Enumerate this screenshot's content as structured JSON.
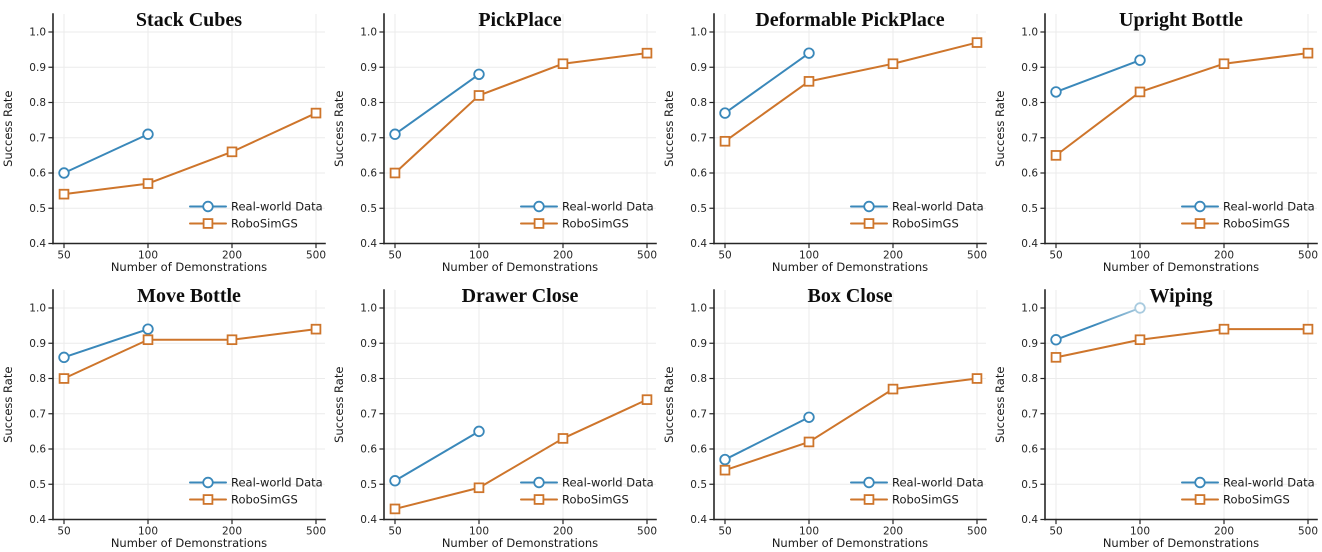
{
  "figure": {
    "xlabel": "Number of Demonstrations",
    "ylabel": "Success Rate",
    "x_tick_labels": [
      "50",
      "100",
      "200",
      "500"
    ],
    "y_tick_labels": [
      "0.4",
      "0.5",
      "0.6",
      "0.7",
      "0.8",
      "0.9",
      "1.0"
    ],
    "legend_entries": [
      "Real-world Data",
      "RoboSimGS"
    ],
    "colors": {
      "real_world_blue": "#3a88ba",
      "robosimgs_orange": "#ce752b",
      "faded_light_blue": "#a9cbdf",
      "grid_line": "#ebebeb",
      "axis_line": "#262626",
      "marker_fill": "#ffffff"
    }
  },
  "chart_data": [
    {
      "type": "line",
      "title": "Stack Cubes",
      "xlabel": "Number of Demonstrations",
      "ylabel": "Success Rate",
      "x_ticks": [
        50,
        100,
        200,
        500
      ],
      "y_ticks": [
        0.4,
        0.5,
        0.6,
        0.7,
        0.8,
        0.9,
        1.0
      ],
      "ylim": [
        0.4,
        1.05
      ],
      "grid": true,
      "legend_position": "lower right",
      "series": [
        {
          "name": "Real-world Data",
          "marker": "circle",
          "color": "#3a88ba",
          "x": [
            50,
            100
          ],
          "y": [
            0.6,
            0.71
          ]
        },
        {
          "name": "RoboSimGS",
          "marker": "square",
          "color": "#ce752b",
          "x": [
            50,
            100,
            200,
            500
          ],
          "y": [
            0.54,
            0.57,
            0.66,
            0.77
          ]
        }
      ]
    },
    {
      "type": "line",
      "title": "PickPlace",
      "xlabel": "Number of Demonstrations",
      "ylabel": "Success Rate",
      "x_ticks": [
        50,
        100,
        200,
        500
      ],
      "y_ticks": [
        0.4,
        0.5,
        0.6,
        0.7,
        0.8,
        0.9,
        1.0
      ],
      "ylim": [
        0.4,
        1.05
      ],
      "grid": true,
      "legend_position": "lower right",
      "series": [
        {
          "name": "Real-world Data",
          "marker": "circle",
          "color": "#3a88ba",
          "x": [
            50,
            100
          ],
          "y": [
            0.71,
            0.88
          ]
        },
        {
          "name": "RoboSimGS",
          "marker": "square",
          "color": "#ce752b",
          "x": [
            50,
            100,
            200,
            500
          ],
          "y": [
            0.6,
            0.82,
            0.91,
            0.94
          ]
        }
      ]
    },
    {
      "type": "line",
      "title": "Deformable PickPlace",
      "xlabel": "Number of Demonstrations",
      "ylabel": "Success Rate",
      "x_ticks": [
        50,
        100,
        200,
        500
      ],
      "y_ticks": [
        0.4,
        0.5,
        0.6,
        0.7,
        0.8,
        0.9,
        1.0
      ],
      "ylim": [
        0.4,
        1.05
      ],
      "grid": true,
      "legend_position": "lower right",
      "series": [
        {
          "name": "Real-world Data",
          "marker": "circle",
          "color": "#3a88ba",
          "x": [
            50,
            100
          ],
          "y": [
            0.77,
            0.94
          ]
        },
        {
          "name": "RoboSimGS",
          "marker": "square",
          "color": "#ce752b",
          "x": [
            50,
            100,
            200,
            500
          ],
          "y": [
            0.69,
            0.86,
            0.91,
            0.97
          ]
        }
      ]
    },
    {
      "type": "line",
      "title": "Upright Bottle",
      "xlabel": "Number of Demonstrations",
      "ylabel": "Success Rate",
      "x_ticks": [
        50,
        100,
        200,
        500
      ],
      "y_ticks": [
        0.4,
        0.5,
        0.6,
        0.7,
        0.8,
        0.9,
        1.0
      ],
      "ylim": [
        0.4,
        1.05
      ],
      "grid": true,
      "legend_position": "lower right",
      "series": [
        {
          "name": "Real-world Data",
          "marker": "circle",
          "color": "#3a88ba",
          "x": [
            50,
            100
          ],
          "y": [
            0.83,
            0.92
          ]
        },
        {
          "name": "RoboSimGS",
          "marker": "square",
          "color": "#ce752b",
          "x": [
            50,
            100,
            200,
            500
          ],
          "y": [
            0.65,
            0.83,
            0.91,
            0.94
          ]
        }
      ]
    },
    {
      "type": "line",
      "title": "Move Bottle",
      "xlabel": "Number of Demonstrations",
      "ylabel": "Success Rate",
      "x_ticks": [
        50,
        100,
        200,
        500
      ],
      "y_ticks": [
        0.4,
        0.5,
        0.6,
        0.7,
        0.8,
        0.9,
        1.0
      ],
      "ylim": [
        0.4,
        1.05
      ],
      "grid": true,
      "legend_position": "lower right",
      "series": [
        {
          "name": "Real-world Data",
          "marker": "circle",
          "color": "#3a88ba",
          "x": [
            50,
            100
          ],
          "y": [
            0.86,
            0.94
          ]
        },
        {
          "name": "RoboSimGS",
          "marker": "square",
          "color": "#ce752b",
          "x": [
            50,
            100,
            200,
            500
          ],
          "y": [
            0.8,
            0.91,
            0.91,
            0.94
          ]
        }
      ]
    },
    {
      "type": "line",
      "title": "Drawer Close",
      "xlabel": "Number of Demonstrations",
      "ylabel": "Success Rate",
      "x_ticks": [
        50,
        100,
        200,
        500
      ],
      "y_ticks": [
        0.4,
        0.5,
        0.6,
        0.7,
        0.8,
        0.9,
        1.0
      ],
      "ylim": [
        0.4,
        1.05
      ],
      "grid": true,
      "legend_position": "lower right",
      "series": [
        {
          "name": "Real-world Data",
          "marker": "circle",
          "color": "#3a88ba",
          "x": [
            50,
            100
          ],
          "y": [
            0.51,
            0.65
          ]
        },
        {
          "name": "RoboSimGS",
          "marker": "square",
          "color": "#ce752b",
          "x": [
            50,
            100,
            200,
            500
          ],
          "y": [
            0.43,
            0.49,
            0.63,
            0.74
          ]
        }
      ]
    },
    {
      "type": "line",
      "title": "Box Close",
      "xlabel": "Number of Demonstrations",
      "ylabel": "Success Rate",
      "x_ticks": [
        50,
        100,
        200,
        500
      ],
      "y_ticks": [
        0.4,
        0.5,
        0.6,
        0.7,
        0.8,
        0.9,
        1.0
      ],
      "ylim": [
        0.4,
        1.05
      ],
      "grid": true,
      "legend_position": "lower right",
      "series": [
        {
          "name": "Real-world Data",
          "marker": "circle",
          "color": "#3a88ba",
          "x": [
            50,
            100
          ],
          "y": [
            0.57,
            0.69
          ]
        },
        {
          "name": "RoboSimGS",
          "marker": "square",
          "color": "#ce752b",
          "x": [
            50,
            100,
            200,
            500
          ],
          "y": [
            0.54,
            0.62,
            0.77,
            0.8
          ]
        }
      ]
    },
    {
      "type": "line",
      "title": "Wiping",
      "xlabel": "Number of Demonstrations",
      "ylabel": "Success Rate",
      "x_ticks": [
        50,
        100,
        200,
        500
      ],
      "y_ticks": [
        0.4,
        0.5,
        0.6,
        0.7,
        0.8,
        0.9,
        1.0
      ],
      "ylim": [
        0.4,
        1.05
      ],
      "grid": true,
      "legend_position": "lower right",
      "series": [
        {
          "name": "Real-world Data",
          "marker": "circle",
          "color": "#3a88ba",
          "fade_to_light": true,
          "fade_color": "#a9cbdf",
          "x": [
            50,
            100
          ],
          "y": [
            0.91,
            1.0
          ]
        },
        {
          "name": "RoboSimGS",
          "marker": "square",
          "color": "#ce752b",
          "x": [
            50,
            100,
            200,
            500
          ],
          "y": [
            0.86,
            0.91,
            0.94,
            0.94
          ]
        }
      ]
    }
  ]
}
